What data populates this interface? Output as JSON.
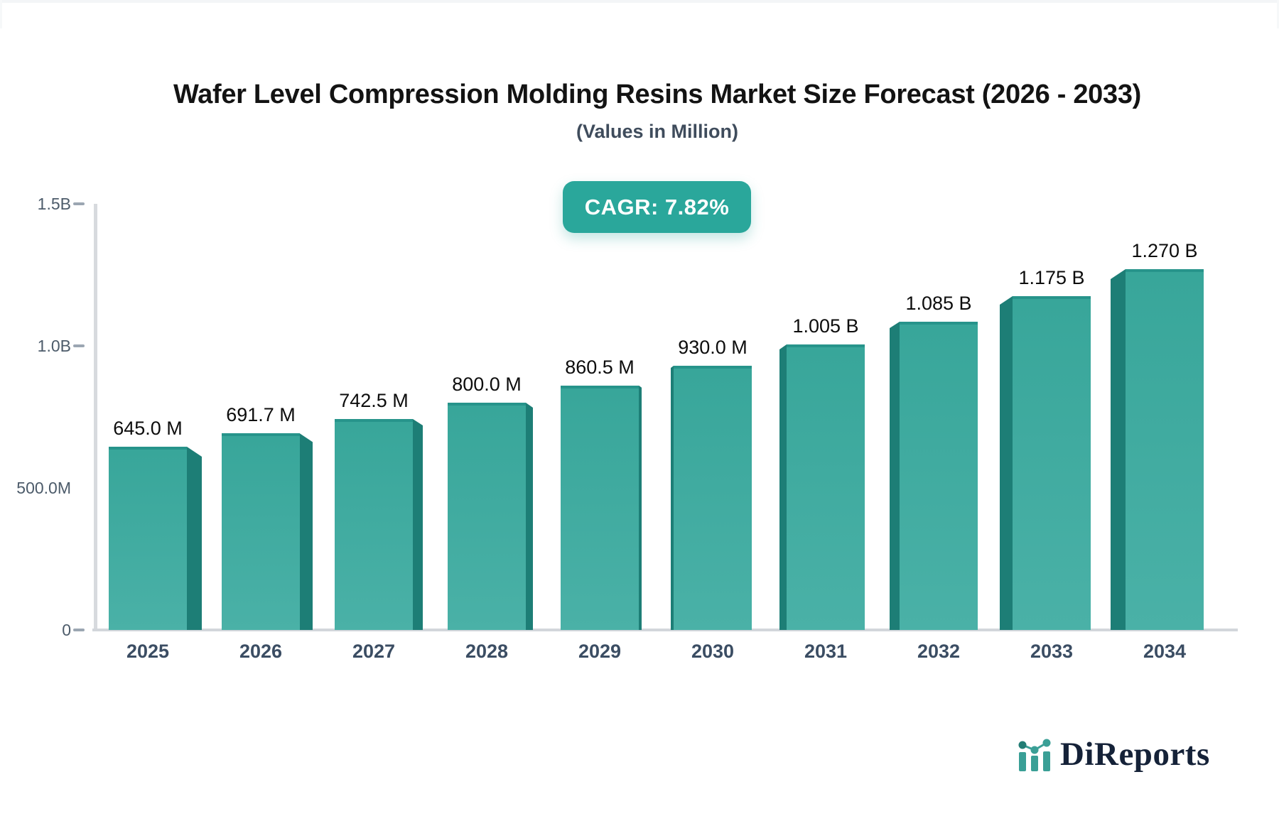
{
  "chart_data": {
    "type": "bar",
    "title": "Wafer Level Compression Molding Resins Market Size Forecast (2026 - 2033)",
    "subtitle": "(Values in Million)",
    "cagr_label": "CAGR: 7.82%",
    "categories": [
      "2025",
      "2026",
      "2027",
      "2028",
      "2029",
      "2030",
      "2031",
      "2032",
      "2033",
      "2034"
    ],
    "values_millions": [
      645.0,
      691.7,
      742.5,
      800.0,
      860.5,
      930.0,
      1005,
      1085,
      1175,
      1270
    ],
    "bar_labels": [
      "645.0 M",
      "691.7 M",
      "742.5 M",
      "800.0 M",
      "860.5 M",
      "930.0 M",
      "1.005 B",
      "1.085 B",
      "1.175 B",
      "1.270 B"
    ],
    "y_ticks": [
      {
        "label": "1.5B",
        "value_millions": 1500,
        "dash": true
      },
      {
        "label": "1.0B",
        "value_millions": 1000,
        "dash": true
      },
      {
        "label": "500.0M",
        "value_millions": 500,
        "dash": false
      },
      {
        "label": "0",
        "value_millions": 0,
        "dash": true
      }
    ],
    "ylim_millions": [
      0,
      1500
    ],
    "grid": false,
    "legend": null,
    "colors": {
      "accent": "#2aa79b",
      "bar_face_top": "#38a69a",
      "bar_face_bottom": "#4ab1a7",
      "bar_top_edge": "#27948b",
      "bar_side": "#1d7e76"
    }
  },
  "branding": {
    "logo_text": "DiReports",
    "logo_icon": "mini-bar-chart-icon",
    "logo_teal": "#3a9f96",
    "logo_teal_dark": "#227d75",
    "logo_navy": "#152238"
  }
}
